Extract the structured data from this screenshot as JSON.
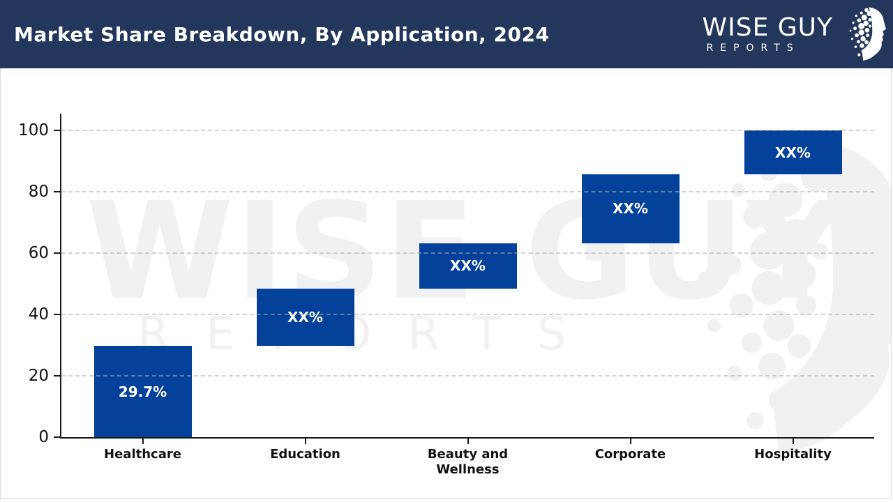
{
  "header": {
    "title": "Market Share Breakdown, By Application, 2024",
    "logo": {
      "wordmark": "WISE GUY",
      "subtext": "REPORTS"
    }
  },
  "watermark": {
    "wordmark": "WISE GUY",
    "subtext": "REPORTS"
  },
  "chart_data": {
    "type": "bar",
    "variant": "floating-waterfall-percent",
    "title": "Market Share Breakdown, By Application, 2024",
    "categories": [
      "Healthcare",
      "Education",
      "Beauty and Wellness",
      "Corporate",
      "Hospitality"
    ],
    "segments": [
      {
        "category": "Healthcare",
        "start": 0,
        "end": 29.7,
        "label": "29.7%"
      },
      {
        "category": "Education",
        "start": 29.7,
        "end": 48.4,
        "label": "XX%"
      },
      {
        "category": "Beauty and Wellness",
        "start": 48.4,
        "end": 63.3,
        "label": "XX%"
      },
      {
        "category": "Corporate",
        "start": 63.3,
        "end": 85.7,
        "label": "XX%"
      },
      {
        "category": "Hospitality",
        "start": 85.7,
        "end": 100,
        "label": "XX%"
      }
    ],
    "y_ticks": [
      0,
      20,
      40,
      60,
      80,
      100
    ],
    "ylim": [
      0,
      105.5
    ],
    "xlabel": "",
    "ylabel": "",
    "grid": {
      "horizontal": true,
      "style": "dashed",
      "vertical": false
    },
    "legend": "none",
    "colors": {
      "bar": "#04419B",
      "bar_label": "#ffffff",
      "axis": "#1a1a1a",
      "tick_label": "#111111",
      "header_bg": "#23375C",
      "watermark": "#f1f1f1"
    }
  }
}
